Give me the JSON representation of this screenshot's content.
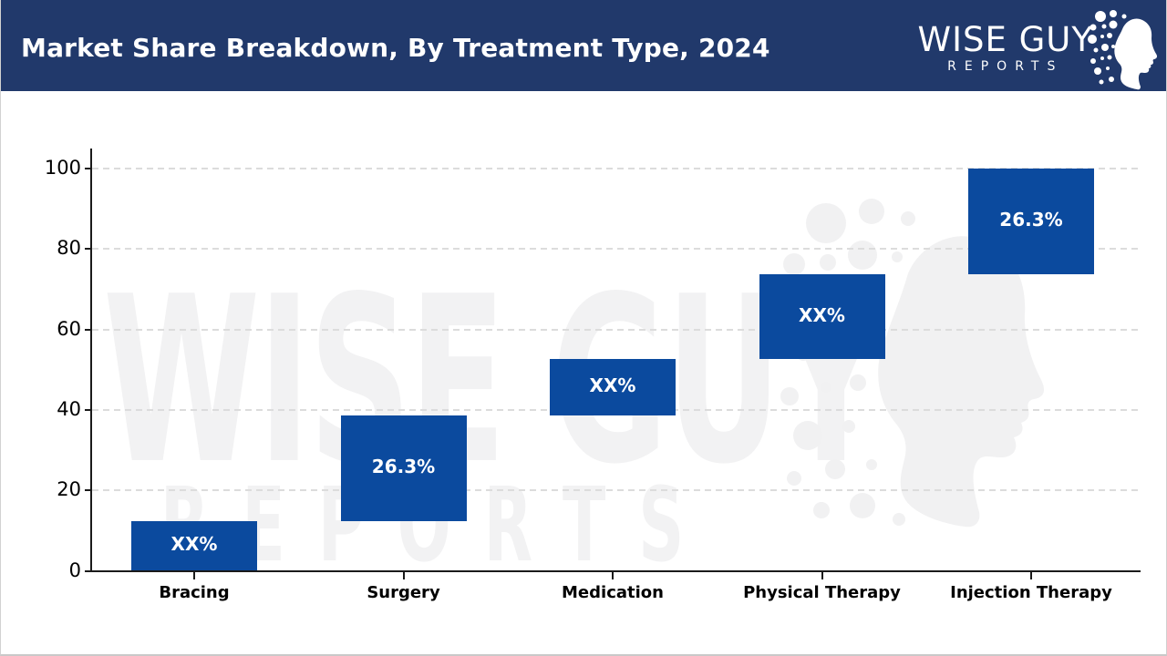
{
  "header": {
    "title": "Market Share Breakdown, By Treatment Type, 2024",
    "logo": {
      "line1": "WISE GUY",
      "line2": "REPORTS"
    }
  },
  "watermark": {
    "line1": "WISE GUY",
    "line2": "REPORTS"
  },
  "colors": {
    "header_bg": "#21396b",
    "bar": "#0b4a9e",
    "grid": "#dcdcdc",
    "watermark": "#f2f2f3"
  },
  "chart_data": {
    "type": "bar",
    "subtype": "floating-waterfall",
    "title": "Market Share Breakdown, By Treatment Type, 2024",
    "xlabel": "",
    "ylabel": "",
    "ylim": [
      0,
      105
    ],
    "yticks": [
      0,
      20,
      40,
      60,
      80,
      100
    ],
    "grid": "horizontal-dashed",
    "legend": "none",
    "categories": [
      "Bracing",
      "Surgery",
      "Medication",
      "Physical Therapy",
      "Injection Therapy"
    ],
    "bars": [
      {
        "category": "Bracing",
        "label": "XX%",
        "start": 0,
        "end": 12.4
      },
      {
        "category": "Surgery",
        "label": "26.3%",
        "start": 12.4,
        "end": 38.7
      },
      {
        "category": "Medication",
        "label": "XX%",
        "start": 38.7,
        "end": 52.6
      },
      {
        "category": "Physical Therapy",
        "label": "XX%",
        "start": 52.6,
        "end": 73.7
      },
      {
        "category": "Injection Therapy",
        "label": "26.3%",
        "start": 73.7,
        "end": 100
      }
    ]
  }
}
